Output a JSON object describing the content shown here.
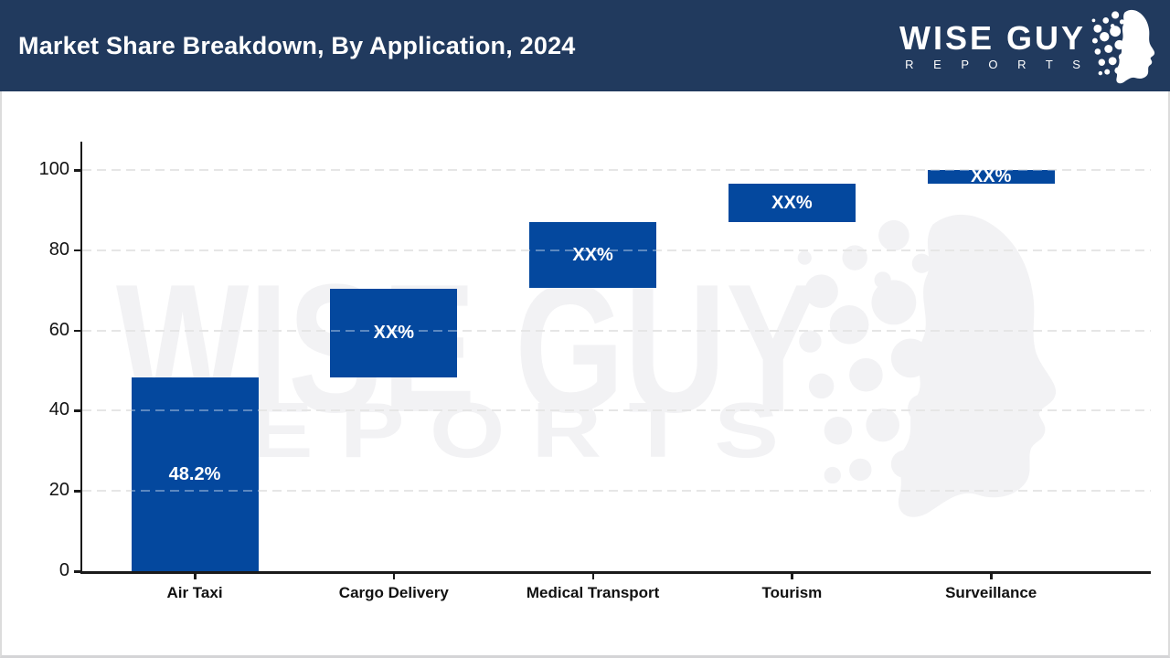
{
  "header": {
    "title": "Market Share Breakdown, By Application, 2024",
    "bg_color": "#213A5E",
    "logo": {
      "line1": "WISE GUY",
      "line2": "R E P O R T S"
    }
  },
  "watermark": {
    "line1": "WISE GUY",
    "line2": "E P O R T S",
    "color": "#F2F2F4"
  },
  "chart_data": {
    "type": "bar",
    "subtype": "waterfall",
    "title": "Market Share Breakdown, By Application, 2024",
    "categories": [
      "Air Taxi",
      "Cargo Delivery",
      "Medical Transport",
      "Tourism",
      "Surveillance"
    ],
    "series": [
      {
        "name": "Market Share",
        "segments": [
          {
            "category": "Air Taxi",
            "start": 0,
            "end": 48.2,
            "label": "48.2%"
          },
          {
            "category": "Cargo Delivery",
            "start": 48.2,
            "end": 70.5,
            "label": "XX%"
          },
          {
            "category": "Medical Transport",
            "start": 70.5,
            "end": 87.0,
            "label": "XX%"
          },
          {
            "category": "Tourism",
            "start": 87.0,
            "end": 96.5,
            "label": "XX%"
          },
          {
            "category": "Surveillance",
            "start": 96.5,
            "end": 100.0,
            "label": "XX%"
          }
        ]
      }
    ],
    "xlabel": "",
    "ylabel": "",
    "ylim": [
      0,
      100
    ],
    "yticks": [
      0,
      20,
      40,
      60,
      80,
      100
    ],
    "grid": "horizontal dashed",
    "legend": "none",
    "bar_color": "#04489E",
    "bar_label_color": "#FFFFFF",
    "grid_color": "#D8D8D8",
    "axis_color": "#1a1a1a"
  }
}
